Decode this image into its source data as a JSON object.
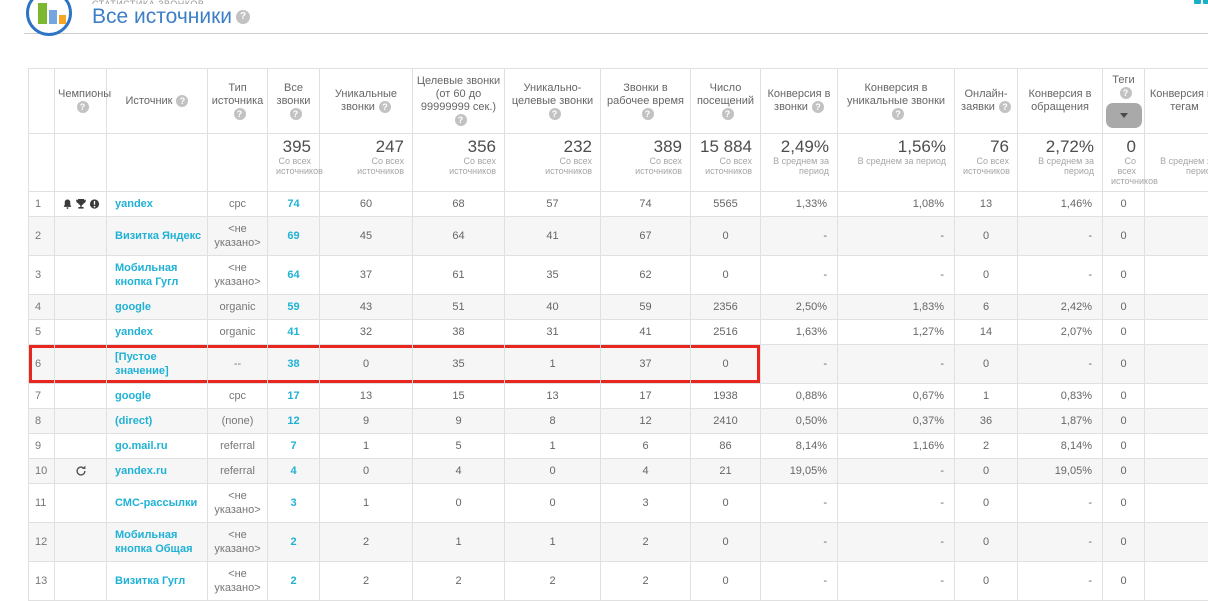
{
  "page": {
    "clipped_top_label": "СТАТИСТИКА ЗВОНКОВ",
    "title": "Все источники",
    "help_glyph": "?"
  },
  "colors": {
    "accent-blue": "#3d7fc7",
    "link-cyan": "#1fb2d5",
    "highlight-red": "#e8251f",
    "icon-green": "#7cb82f",
    "icon-blue": "#74a7e0",
    "icon-orange": "#f5a623",
    "corner-teal": "#17b0c8"
  },
  "table": {
    "columns": [
      {
        "label": "",
        "help": false
      },
      {
        "label": "Чемпионы",
        "help": true
      },
      {
        "label": "Источник",
        "help": true
      },
      {
        "label": "Тип источника",
        "help": true
      },
      {
        "label": "Все звонки",
        "help": true
      },
      {
        "label": "Уникальные звонки",
        "help": true
      },
      {
        "label": "Целевые звонки (от 60 до 99999999 сек.)",
        "help": true
      },
      {
        "label": "Уникально-целевые звонки",
        "help": true
      },
      {
        "label": "Звонки в рабочее время",
        "help": true
      },
      {
        "label": "Число посещений",
        "help": true
      },
      {
        "label": "Конверсия в звонки",
        "help": true
      },
      {
        "label": "Конверсия в уникальные звонки",
        "help": true
      },
      {
        "label": "Онлайн-заявки",
        "help": true
      },
      {
        "label": "Конверсия в обращения",
        "help": false
      },
      {
        "label": "Теги",
        "help": true,
        "dropdown": true
      },
      {
        "label": "Конверсия по тегам",
        "help": false
      }
    ],
    "summary": {
      "leading_empty_cells": 4,
      "cells": [
        {
          "value": "395",
          "sub": "Со всех источников"
        },
        {
          "value": "247",
          "sub": "Со всех источников"
        },
        {
          "value": "356",
          "sub": "Со всех источников"
        },
        {
          "value": "232",
          "sub": "Со всех источников"
        },
        {
          "value": "389",
          "sub": "Со всех источников"
        },
        {
          "value": "15 884",
          "sub": "Со всех источников"
        },
        {
          "value": "2,49%",
          "sub": "В среднем за период"
        },
        {
          "value": "1,56%",
          "sub": "В среднем за период"
        },
        {
          "value": "76",
          "sub": "Со всех источников"
        },
        {
          "value": "2,72%",
          "sub": "В среднем за период"
        },
        {
          "value": "0",
          "sub": "Со всех источников"
        },
        {
          "value": "-",
          "sub": "В среднем за период"
        }
      ]
    },
    "rows": [
      {
        "index": "1",
        "champions": [
          "bell-icon",
          "trophy-icon",
          "alert-badge-icon"
        ],
        "source": "yandex",
        "type": "cpc",
        "all_calls": "74",
        "unique_calls": "60",
        "target_calls": "68",
        "unique_target_calls": "57",
        "work_time_calls": "74",
        "visits": "5565",
        "conv_calls": "1,33%",
        "conv_unique_calls": "1,08%",
        "online_leads": "13",
        "conv_appeals": "1,46%",
        "tags": "0",
        "conv_by_tags": "-",
        "highlighted": false
      },
      {
        "index": "2",
        "champions": [],
        "source": "Визитка Яндекс",
        "type": "<не указано>",
        "all_calls": "69",
        "unique_calls": "45",
        "target_calls": "64",
        "unique_target_calls": "41",
        "work_time_calls": "67",
        "visits": "0",
        "conv_calls": "-",
        "conv_unique_calls": "-",
        "online_leads": "0",
        "conv_appeals": "-",
        "tags": "0",
        "conv_by_tags": "-",
        "highlighted": false
      },
      {
        "index": "3",
        "champions": [],
        "source": "Мобильная кнопка Гугл",
        "type": "<не указано>",
        "all_calls": "64",
        "unique_calls": "37",
        "target_calls": "61",
        "unique_target_calls": "35",
        "work_time_calls": "62",
        "visits": "0",
        "conv_calls": "-",
        "conv_unique_calls": "-",
        "online_leads": "0",
        "conv_appeals": "-",
        "tags": "0",
        "conv_by_tags": "-",
        "highlighted": false
      },
      {
        "index": "4",
        "champions": [],
        "source": "google",
        "type": "organic",
        "all_calls": "59",
        "unique_calls": "43",
        "target_calls": "51",
        "unique_target_calls": "40",
        "work_time_calls": "59",
        "visits": "2356",
        "conv_calls": "2,50%",
        "conv_unique_calls": "1,83%",
        "online_leads": "6",
        "conv_appeals": "2,42%",
        "tags": "0",
        "conv_by_tags": "-",
        "highlighted": false
      },
      {
        "index": "5",
        "champions": [],
        "source": "yandex",
        "type": "organic",
        "all_calls": "41",
        "unique_calls": "32",
        "target_calls": "38",
        "unique_target_calls": "31",
        "work_time_calls": "41",
        "visits": "2516",
        "conv_calls": "1,63%",
        "conv_unique_calls": "1,27%",
        "online_leads": "14",
        "conv_appeals": "2,07%",
        "tags": "0",
        "conv_by_tags": "-",
        "highlighted": false
      },
      {
        "index": "6",
        "champions": [],
        "source": "[Пустое значение]",
        "type": "--",
        "all_calls": "38",
        "unique_calls": "0",
        "target_calls": "35",
        "unique_target_calls": "1",
        "work_time_calls": "37",
        "visits": "0",
        "conv_calls": "-",
        "conv_unique_calls": "-",
        "online_leads": "0",
        "conv_appeals": "-",
        "tags": "0",
        "conv_by_tags": "-",
        "highlighted": true
      },
      {
        "index": "7",
        "champions": [],
        "source": "google",
        "type": "cpc",
        "all_calls": "17",
        "unique_calls": "13",
        "target_calls": "15",
        "unique_target_calls": "13",
        "work_time_calls": "17",
        "visits": "1938",
        "conv_calls": "0,88%",
        "conv_unique_calls": "0,67%",
        "online_leads": "1",
        "conv_appeals": "0,83%",
        "tags": "0",
        "conv_by_tags": "-",
        "highlighted": false
      },
      {
        "index": "8",
        "champions": [],
        "source": "(direct)",
        "type": "(none)",
        "all_calls": "12",
        "unique_calls": "9",
        "target_calls": "9",
        "unique_target_calls": "8",
        "work_time_calls": "12",
        "visits": "2410",
        "conv_calls": "0,50%",
        "conv_unique_calls": "0,37%",
        "online_leads": "36",
        "conv_appeals": "1,87%",
        "tags": "0",
        "conv_by_tags": "-",
        "highlighted": false
      },
      {
        "index": "9",
        "champions": [],
        "source": "go.mail.ru",
        "type": "referral",
        "all_calls": "7",
        "unique_calls": "1",
        "target_calls": "5",
        "unique_target_calls": "1",
        "work_time_calls": "6",
        "visits": "86",
        "conv_calls": "8,14%",
        "conv_unique_calls": "1,16%",
        "online_leads": "2",
        "conv_appeals": "8,14%",
        "tags": "0",
        "conv_by_tags": "-",
        "highlighted": false
      },
      {
        "index": "10",
        "champions": [
          "refresh-icon"
        ],
        "source": "yandex.ru",
        "type": "referral",
        "all_calls": "4",
        "unique_calls": "0",
        "target_calls": "4",
        "unique_target_calls": "0",
        "work_time_calls": "4",
        "visits": "21",
        "conv_calls": "19,05%",
        "conv_unique_calls": "-",
        "online_leads": "0",
        "conv_appeals": "19,05%",
        "tags": "0",
        "conv_by_tags": "-",
        "highlighted": false
      },
      {
        "index": "11",
        "champions": [],
        "source": "СМС-рассылки",
        "type": "<не указано>",
        "all_calls": "3",
        "unique_calls": "1",
        "target_calls": "0",
        "unique_target_calls": "0",
        "work_time_calls": "3",
        "visits": "0",
        "conv_calls": "-",
        "conv_unique_calls": "-",
        "online_leads": "0",
        "conv_appeals": "-",
        "tags": "0",
        "conv_by_tags": "-",
        "highlighted": false
      },
      {
        "index": "12",
        "champions": [],
        "source": "Мобильная кнопка Общая",
        "type": "<не указано>",
        "all_calls": "2",
        "unique_calls": "2",
        "target_calls": "1",
        "unique_target_calls": "1",
        "work_time_calls": "2",
        "visits": "0",
        "conv_calls": "-",
        "conv_unique_calls": "-",
        "online_leads": "0",
        "conv_appeals": "-",
        "tags": "0",
        "conv_by_tags": "-",
        "highlighted": false
      },
      {
        "index": "13",
        "champions": [],
        "source": "Визитка Гугл",
        "type": "<не указано>",
        "all_calls": "2",
        "unique_calls": "2",
        "target_calls": "2",
        "unique_target_calls": "2",
        "work_time_calls": "2",
        "visits": "0",
        "conv_calls": "-",
        "conv_unique_calls": "-",
        "online_leads": "0",
        "conv_appeals": "-",
        "tags": "0",
        "conv_by_tags": "-",
        "highlighted": false
      }
    ]
  }
}
